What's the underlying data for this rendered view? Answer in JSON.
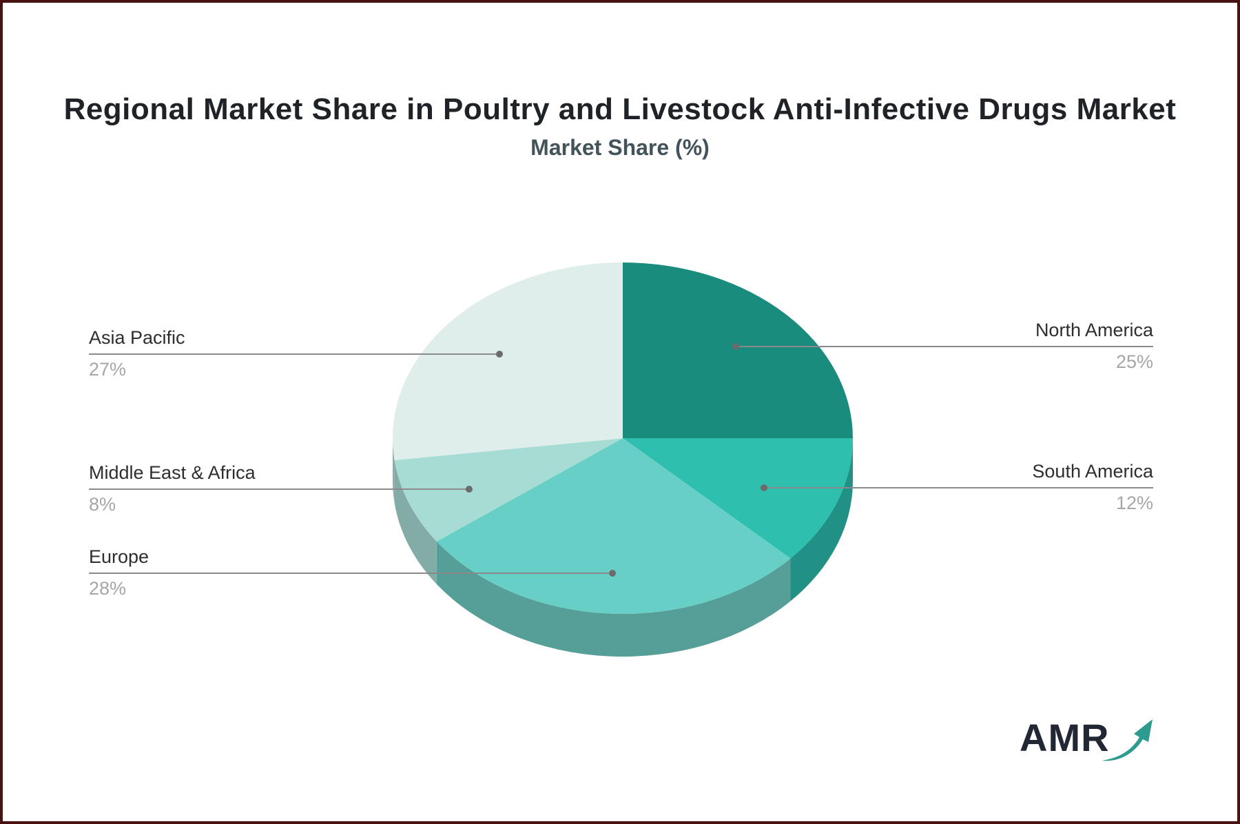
{
  "header": {
    "title": "Regional Market Share in Poultry and Livestock Anti-Infective Drugs Market",
    "subtitle": "Market Share (%)"
  },
  "chart_data": {
    "type": "pie",
    "title": "Regional Market Share in Poultry and Livestock Anti-Infective Drugs Market",
    "subtitle": "Market Share (%)",
    "unit": "%",
    "effect": "3d",
    "direction": "clockwise",
    "start_angle_deg": 0,
    "legend": "none",
    "slices": [
      {
        "label": "North America",
        "value": 25,
        "value_text": "25%",
        "color": "#198c7e",
        "side_color": "#147265",
        "label_side": "right"
      },
      {
        "label": "South America",
        "value": 12,
        "value_text": "12%",
        "color": "#2fbfaf",
        "side_color": "#219185",
        "label_side": "right"
      },
      {
        "label": "Europe",
        "value": 28,
        "value_text": "28%",
        "color": "#67cfc6",
        "side_color": "#569f99",
        "label_side": "left"
      },
      {
        "label": "Middle East & Africa",
        "value": 8,
        "value_text": "8%",
        "color": "#a6dcd3",
        "side_color": "#84aca6",
        "label_side": "left"
      },
      {
        "label": "Asia Pacific",
        "value": 27,
        "value_text": "27%",
        "color": "#dfeeeb",
        "side_color": "#94aaa6",
        "label_side": "left"
      }
    ],
    "callout_line_color": "#8a8a8a",
    "callout_dot_color": "#6b6b6b",
    "label_color": "#2e2e2e",
    "value_color": "#a6a6a6"
  },
  "logo": {
    "text": "AMR",
    "arrow_color": "#2e9b90"
  }
}
